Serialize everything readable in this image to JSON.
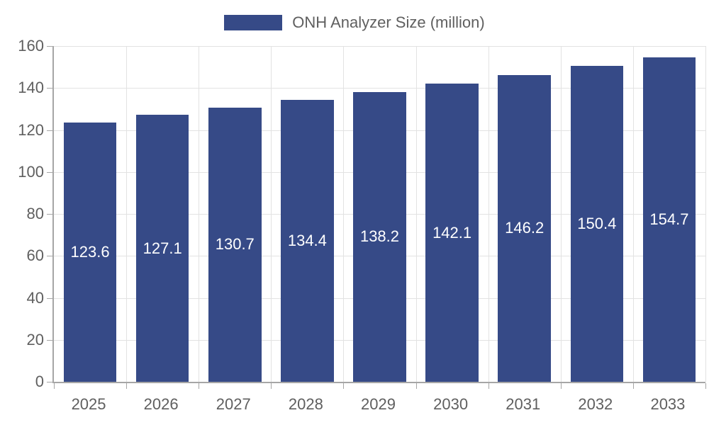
{
  "legend": {
    "label": "ONH Analyzer Size (million)"
  },
  "colors": {
    "bar": "#364a87",
    "grid": "#e2e2e2",
    "axis": "#a6a6a6",
    "text": "#5f5f5f",
    "value_label": "#ffffff",
    "background": "#ffffff"
  },
  "chart_data": {
    "type": "bar",
    "title": "ONH Analyzer Size (million)",
    "categories": [
      "2025",
      "2026",
      "2027",
      "2028",
      "2029",
      "2030",
      "2031",
      "2032",
      "2033"
    ],
    "values": [
      123.6,
      127.1,
      130.7,
      134.4,
      138.2,
      142.1,
      146.2,
      150.4,
      154.7
    ],
    "xlabel": "",
    "ylabel": "",
    "ylim": [
      0,
      160
    ],
    "yticks": [
      0,
      20,
      40,
      60,
      80,
      100,
      120,
      140,
      160
    ],
    "grid": true,
    "legend_position": "top-center",
    "value_labels": "inside-center"
  }
}
